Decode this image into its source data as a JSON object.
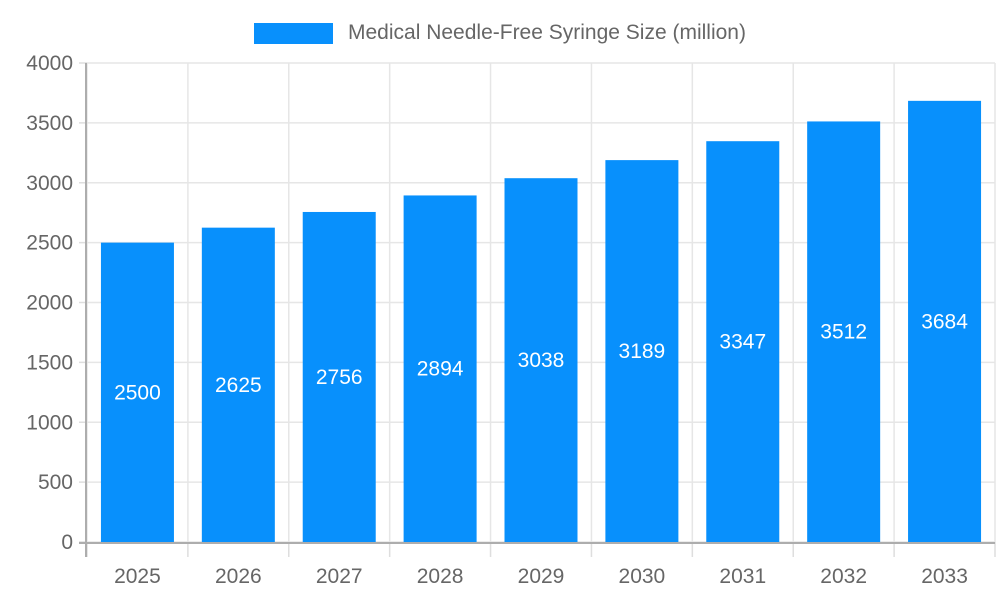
{
  "chart_data": {
    "type": "bar",
    "title": "Medical Needle-Free Syringe Size (million)",
    "categories": [
      "2025",
      "2026",
      "2027",
      "2028",
      "2029",
      "2030",
      "2031",
      "2032",
      "2033"
    ],
    "values": [
      2500,
      2625,
      2756,
      2894,
      3038,
      3189,
      3347,
      3512,
      3684
    ],
    "xlabel": "",
    "ylabel": "",
    "ylim": [
      0,
      4000
    ],
    "ytick_step": 500,
    "grid": true,
    "legend_position": "top",
    "bar_color": "#0890FC",
    "value_label_color": "#ffffff",
    "axis_text_color": "#666666",
    "grid_color": "#e6e6e6",
    "tick_color": "#dedede",
    "axis_line_color": "#adadad"
  }
}
